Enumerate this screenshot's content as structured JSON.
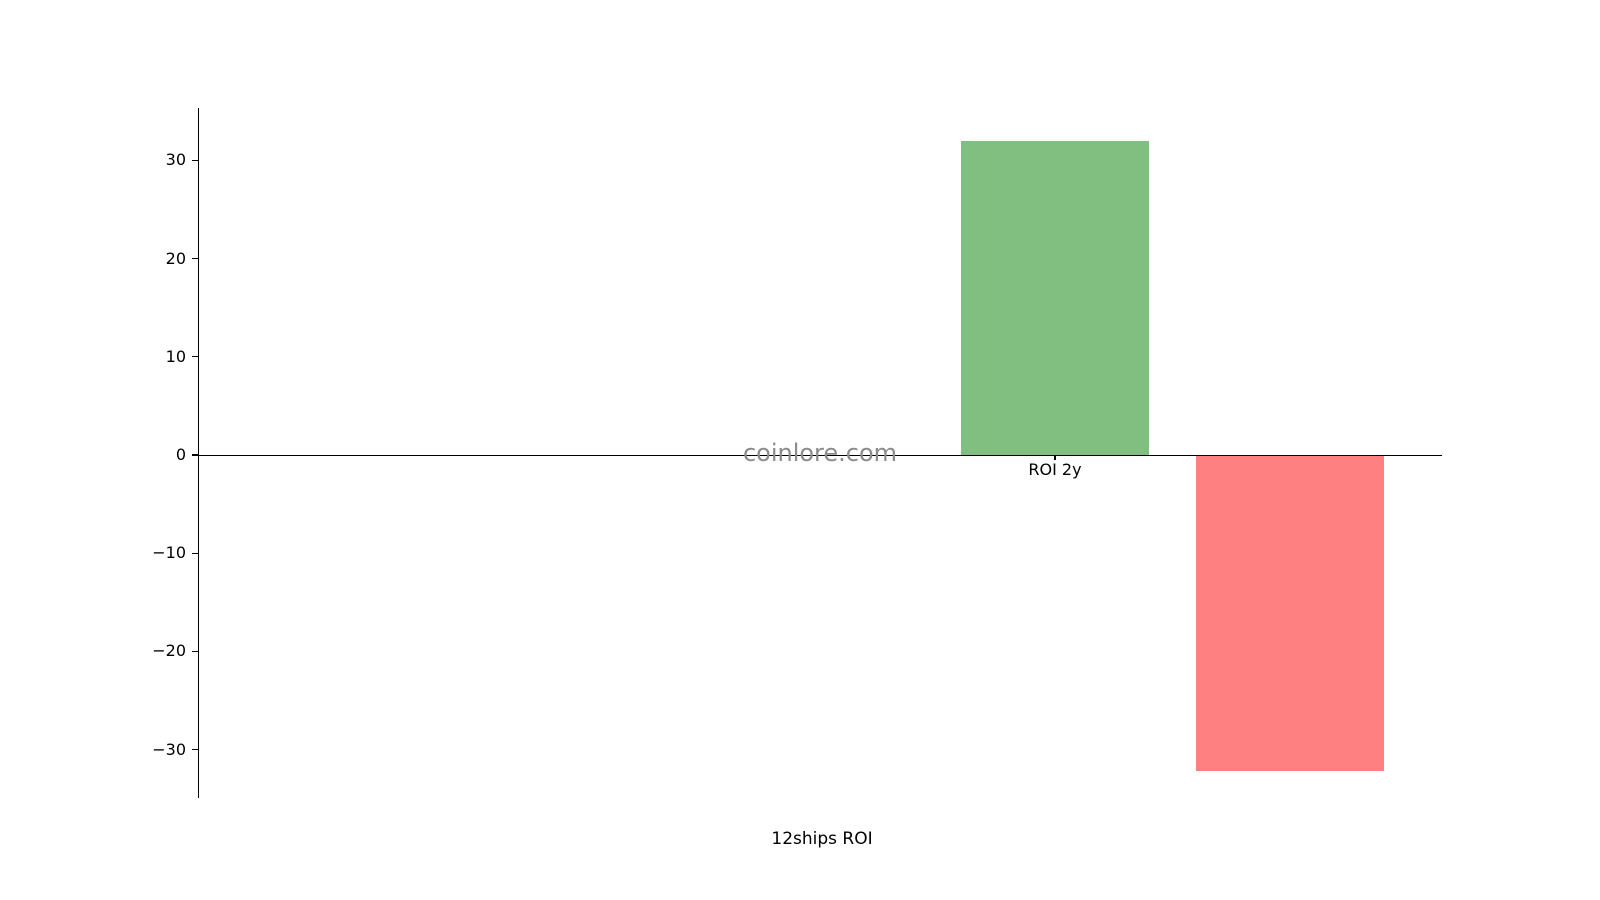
{
  "watermark": {
    "text": "coinlore.com",
    "color": "#8b8b8b"
  },
  "chart_data": {
    "type": "bar",
    "title": "",
    "xlabel": "12ships ROI",
    "ylabel": "",
    "categories": [
      "ROI 2y",
      ""
    ],
    "values": [
      32,
      -32
    ],
    "bar_colors": [
      "#80bf80",
      "#ff8080"
    ],
    "positive_color": "#80bf80",
    "negative_color": "#ff8080",
    "axis_color": "#000000",
    "ytick_labels": [
      "30",
      "20",
      "10",
      "0",
      "−10",
      "−20",
      "−30"
    ],
    "ytick_values": [
      30,
      20,
      10,
      0,
      -10,
      -20,
      -30
    ],
    "ylim": [
      -35.2,
      35.2
    ],
    "grid": false,
    "legend": null
  }
}
